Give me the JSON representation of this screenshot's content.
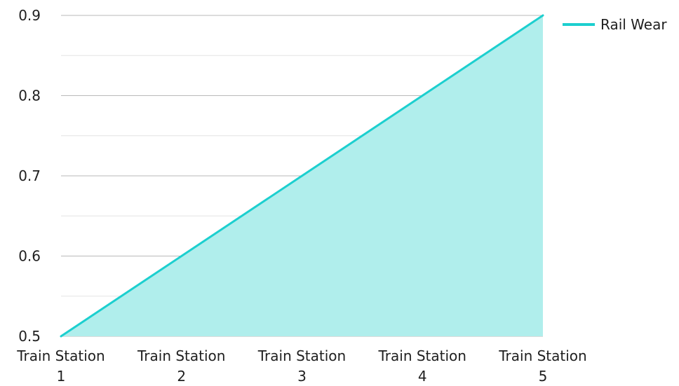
{
  "chart_data": {
    "type": "area",
    "categories": [
      [
        "Train Station",
        "1"
      ],
      [
        "Train Station",
        "2"
      ],
      [
        "Train Station",
        "3"
      ],
      [
        "Train Station",
        "4"
      ],
      [
        "Train Station",
        "5"
      ]
    ],
    "series": [
      {
        "name": "Rail Wear",
        "values": [
          0.5,
          0.6,
          0.7,
          0.8,
          0.9
        ],
        "line_color": "#1ccfcf",
        "fill_color": "#b0eeec"
      }
    ],
    "ylim": [
      0.5,
      0.9
    ],
    "y_ticks": [
      "0.5",
      "0.6",
      "0.7",
      "0.8",
      "0.9"
    ],
    "grid": true,
    "legend_position": "top-right",
    "title": "",
    "xlabel": "",
    "ylabel": ""
  }
}
